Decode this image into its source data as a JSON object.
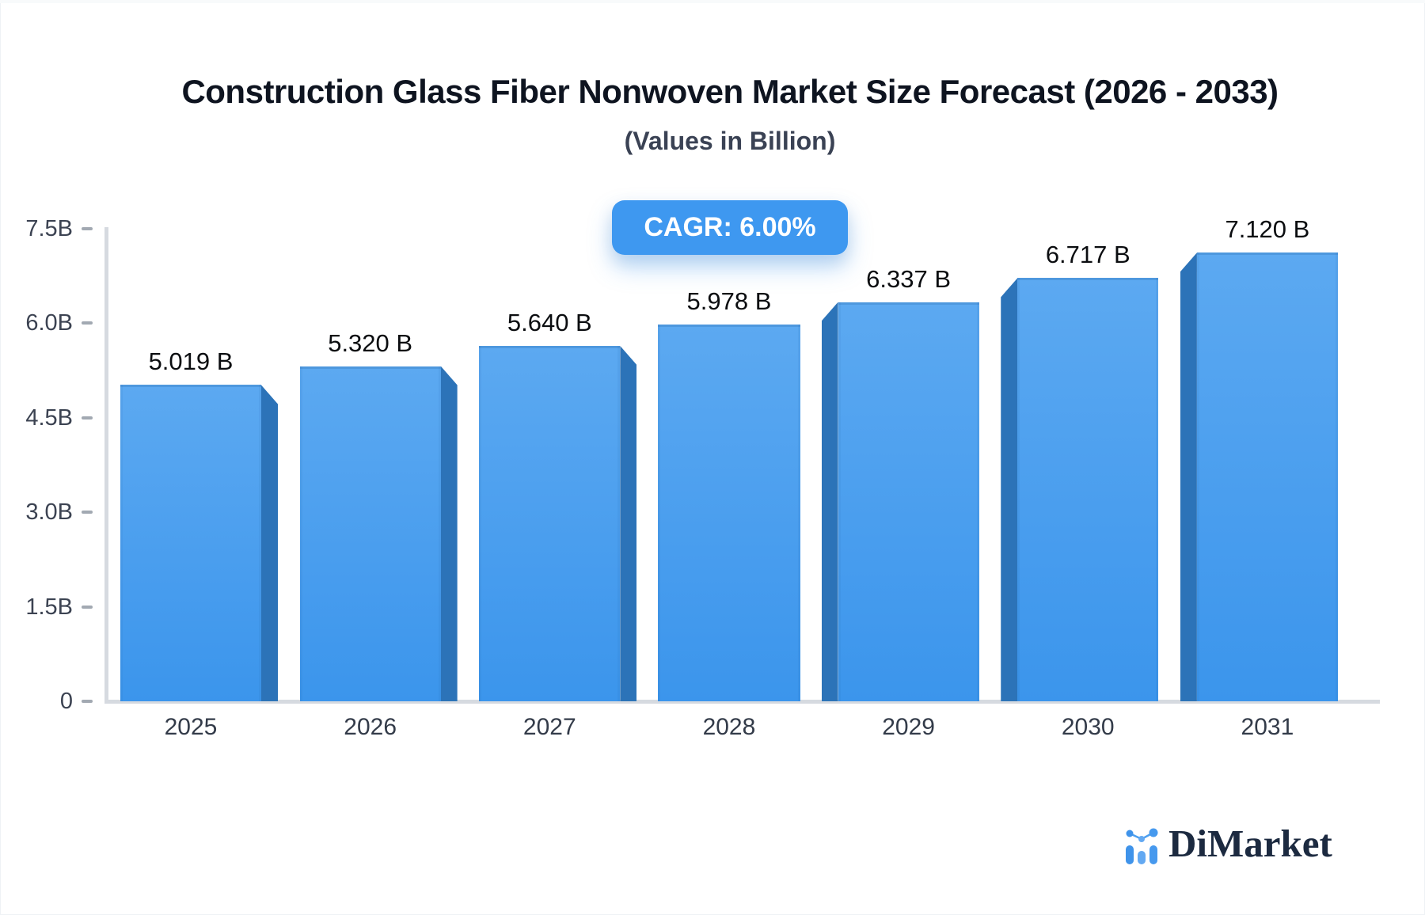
{
  "header": {
    "title": "Construction Glass Fiber Nonwoven Market Size Forecast (2026 - 2033)",
    "subtitle": "(Values in Billion)",
    "cagr_label": "CAGR: 6.00%"
  },
  "chart_data": {
    "type": "bar",
    "title": "Construction Glass Fiber Nonwoven Market Size Forecast (2026 - 2033)",
    "subtitle": "(Values in Billion)",
    "annotation": "CAGR: 6.00%",
    "categories": [
      "2025",
      "2026",
      "2027",
      "2028",
      "2029",
      "2030",
      "2031"
    ],
    "values": [
      5.019,
      5.32,
      5.64,
      5.978,
      6.337,
      6.717,
      7.12
    ],
    "value_labels": [
      "5.019 B",
      "5.320 B",
      "5.640 B",
      "5.978 B",
      "6.337 B",
      "6.717 B",
      "7.120 B"
    ],
    "xlabel": "",
    "ylabel": "Values in Billion",
    "ylim": [
      0,
      7.5
    ],
    "ytick_values": [
      0,
      1.5,
      3.0,
      4.5,
      6.0,
      7.5
    ],
    "ytick_labels": [
      "0",
      "1.5B",
      "3.0B",
      "4.5B",
      "6.0B",
      "7.5B"
    ],
    "grid": false,
    "legend": "none",
    "bar_style": "3d-extruded"
  },
  "branding": {
    "logo_text": "DiMarket",
    "logo_icon": "mini-bar-chart-icon"
  },
  "colors": {
    "bar_face_top": "#5ca9f1",
    "bar_face_bottom": "#3b95ec",
    "bar_side": "#2c73b8",
    "badge_bg": "#3e98f0",
    "axis": "#d6dae0",
    "tick": "#a2a9b2",
    "tick_label": "#3c4352",
    "x_label": "#333b49",
    "value_label": "#0b0d10",
    "title": "#0e1420",
    "subtitle": "#3a4254",
    "logo_text": "#1c2a40",
    "logo_blue": "#4699ee"
  }
}
